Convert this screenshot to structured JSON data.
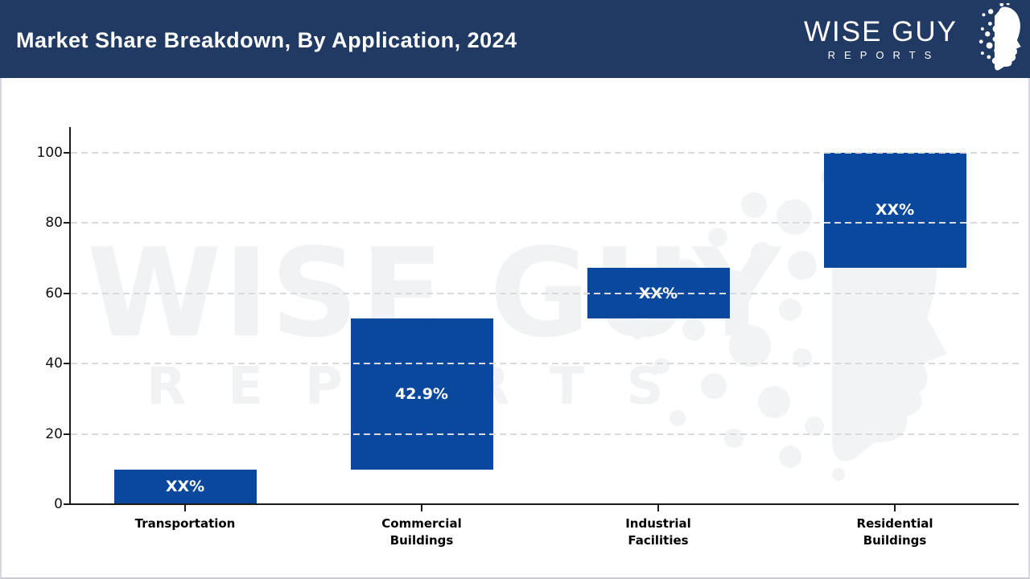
{
  "header": {
    "title": "Market Share Breakdown, By Application, 2024",
    "logo_line1": "WISE GUY",
    "logo_line2": "REPORTS"
  },
  "watermark": {
    "line1": "WISE GUY",
    "line2": "REPORTS"
  },
  "colors": {
    "header_bg": "#213A63",
    "bar": "#0A489E",
    "gridline": "#D8DADD",
    "axis": "#1A1A1A",
    "value_label": "#FFFFFF",
    "watermark": "#F1F2F4"
  },
  "chart_data": {
    "type": "bar",
    "subtype": "waterfall",
    "title": "Market Share Breakdown, By Application, 2024",
    "xlabel": "",
    "ylabel": "",
    "legend": "none",
    "grid": "horizontal dashed lines drawn over bars",
    "y_ticks": [
      0,
      20,
      40,
      60,
      80,
      100
    ],
    "ylim": [
      0,
      105
    ],
    "categories": [
      "Transportation",
      "Commercial Buildings",
      "Industrial Facilities",
      "Residential Buildings"
    ],
    "category_lines": [
      [
        "Transportation"
      ],
      [
        "Commercial",
        "Buildings"
      ],
      [
        "Industrial",
        "Facilities"
      ],
      [
        "Residential",
        "Buildings"
      ]
    ],
    "segments": [
      {
        "category": "Transportation",
        "start": 0,
        "end": 9.9,
        "value_label": "XX%"
      },
      {
        "category": "Commercial Buildings",
        "start": 9.9,
        "end": 52.8,
        "value_label": "42.9%",
        "value": 42.9
      },
      {
        "category": "Industrial Facilities",
        "start": 52.8,
        "end": 67.1,
        "value_label": "XX%"
      },
      {
        "category": "Residential Buildings",
        "start": 67.1,
        "end": 100,
        "value_label": "XX%"
      }
    ],
    "bar_color": "#0A489E"
  }
}
